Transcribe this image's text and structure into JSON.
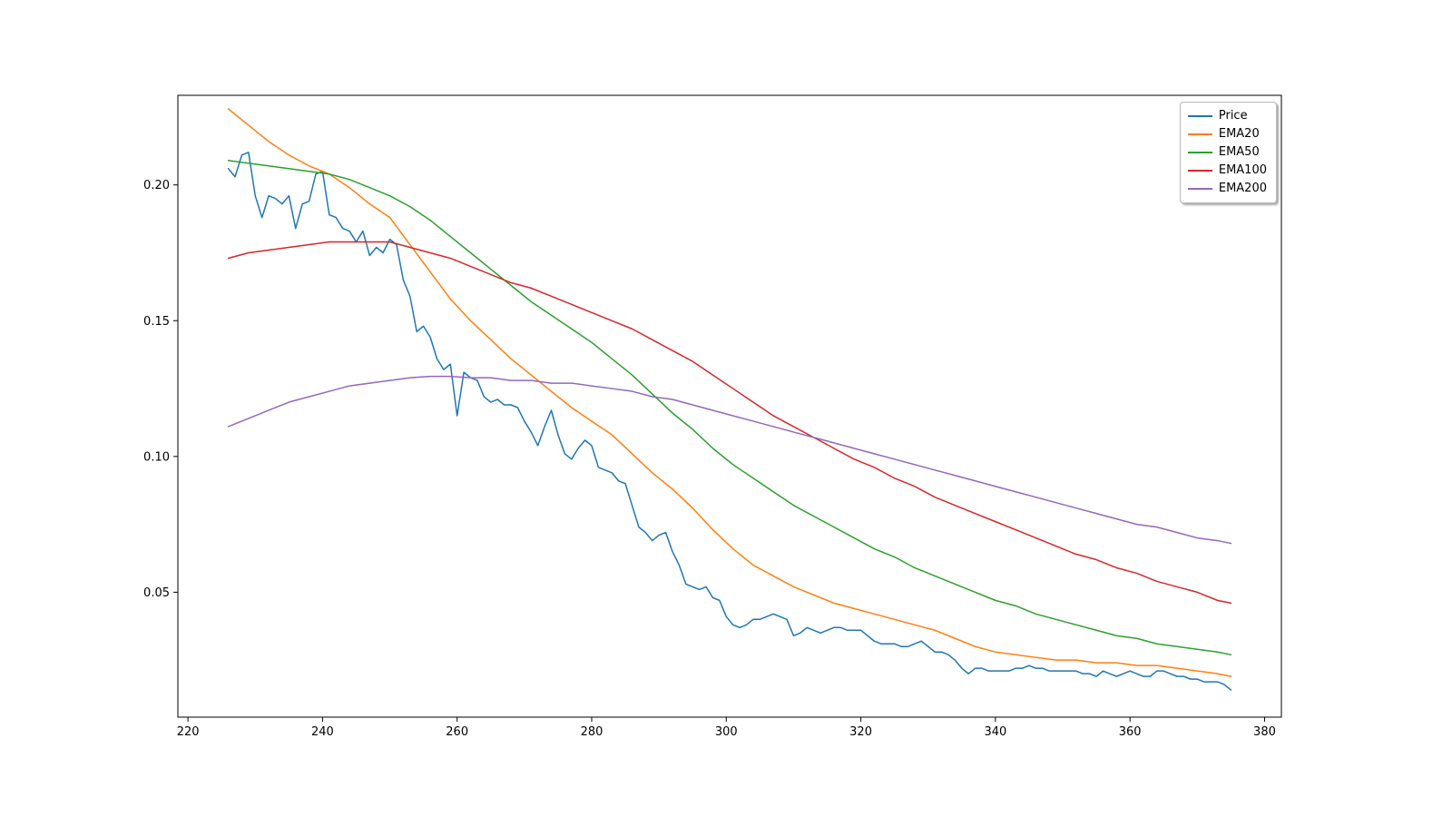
{
  "chart_data": {
    "type": "line",
    "title": "",
    "xlabel": "",
    "ylabel": "",
    "grid": false,
    "legend_position": "upper right",
    "xlim": [
      218.5,
      382.5
    ],
    "ylim": [
      0.004,
      0.233
    ],
    "x_ticks": [
      220,
      240,
      260,
      280,
      300,
      320,
      340,
      360,
      380
    ],
    "x_tick_labels": [
      "220",
      "240",
      "260",
      "280",
      "300",
      "320",
      "340",
      "360",
      "380"
    ],
    "y_ticks": [
      0.05,
      0.1,
      0.15,
      0.2
    ],
    "y_tick_labels": [
      "0.05",
      "0.10",
      "0.15",
      "0.20"
    ],
    "series": [
      {
        "name": "Price",
        "color": "#1f77b4",
        "x_start": 226,
        "x_step": 1,
        "y": [
          0.206,
          0.203,
          0.211,
          0.212,
          0.196,
          0.188,
          0.196,
          0.195,
          0.193,
          0.196,
          0.184,
          0.193,
          0.194,
          0.204,
          0.205,
          0.189,
          0.188,
          0.184,
          0.183,
          0.179,
          0.183,
          0.174,
          0.177,
          0.175,
          0.18,
          0.178,
          0.165,
          0.159,
          0.146,
          0.148,
          0.144,
          0.136,
          0.132,
          0.134,
          0.115,
          0.131,
          0.129,
          0.128,
          0.122,
          0.12,
          0.121,
          0.119,
          0.119,
          0.118,
          0.113,
          0.109,
          0.104,
          0.111,
          0.117,
          0.108,
          0.101,
          0.099,
          0.103,
          0.106,
          0.104,
          0.096,
          0.095,
          0.094,
          0.091,
          0.09,
          0.082,
          0.074,
          0.072,
          0.069,
          0.071,
          0.072,
          0.065,
          0.06,
          0.053,
          0.052,
          0.051,
          0.052,
          0.048,
          0.047,
          0.041,
          0.038,
          0.037,
          0.038,
          0.04,
          0.04,
          0.041,
          0.042,
          0.041,
          0.04,
          0.034,
          0.035,
          0.037,
          0.036,
          0.035,
          0.036,
          0.037,
          0.037,
          0.036,
          0.036,
          0.036,
          0.034,
          0.032,
          0.031,
          0.031,
          0.031,
          0.03,
          0.03,
          0.031,
          0.032,
          0.03,
          0.028,
          0.028,
          0.027,
          0.025,
          0.022,
          0.02,
          0.022,
          0.022,
          0.021,
          0.021,
          0.021,
          0.021,
          0.022,
          0.022,
          0.023,
          0.022,
          0.022,
          0.021,
          0.021,
          0.021,
          0.021,
          0.021,
          0.02,
          0.02,
          0.019,
          0.021,
          0.02,
          0.019,
          0.02,
          0.021,
          0.02,
          0.019,
          0.019,
          0.021,
          0.021,
          0.02,
          0.019,
          0.019,
          0.018,
          0.018,
          0.017,
          0.017,
          0.017,
          0.016,
          0.014
        ]
      },
      {
        "name": "EMA20",
        "color": "#ff7f0e",
        "x": [
          226,
          229,
          232,
          235,
          238,
          241,
          244,
          247,
          250,
          253,
          256,
          259,
          262,
          265,
          268,
          271,
          274,
          277,
          280,
          283,
          286,
          289,
          292,
          295,
          298,
          301,
          304,
          307,
          310,
          313,
          316,
          319,
          322,
          325,
          328,
          331,
          334,
          337,
          340,
          343,
          346,
          349,
          352,
          355,
          358,
          361,
          364,
          367,
          370,
          373,
          375
        ],
        "y": [
          0.228,
          0.222,
          0.216,
          0.211,
          0.207,
          0.204,
          0.199,
          0.193,
          0.188,
          0.178,
          0.168,
          0.158,
          0.15,
          0.143,
          0.136,
          0.13,
          0.124,
          0.118,
          0.113,
          0.108,
          0.101,
          0.094,
          0.088,
          0.081,
          0.073,
          0.066,
          0.06,
          0.056,
          0.052,
          0.049,
          0.046,
          0.044,
          0.042,
          0.04,
          0.038,
          0.036,
          0.033,
          0.03,
          0.028,
          0.027,
          0.026,
          0.025,
          0.025,
          0.024,
          0.024,
          0.023,
          0.023,
          0.022,
          0.021,
          0.02,
          0.019
        ]
      },
      {
        "name": "EMA50",
        "color": "#2ca02c",
        "x": [
          226,
          229,
          232,
          235,
          238,
          241,
          244,
          247,
          250,
          253,
          256,
          259,
          262,
          265,
          268,
          271,
          274,
          277,
          280,
          283,
          286,
          289,
          292,
          295,
          298,
          301,
          304,
          307,
          310,
          313,
          316,
          319,
          322,
          325,
          328,
          331,
          334,
          337,
          340,
          343,
          346,
          349,
          352,
          355,
          358,
          361,
          364,
          367,
          370,
          373,
          375
        ],
        "y": [
          0.209,
          0.208,
          0.207,
          0.206,
          0.205,
          0.204,
          0.202,
          0.199,
          0.196,
          0.192,
          0.187,
          0.181,
          0.175,
          0.169,
          0.163,
          0.157,
          0.152,
          0.147,
          0.142,
          0.136,
          0.13,
          0.123,
          0.116,
          0.11,
          0.103,
          0.097,
          0.092,
          0.087,
          0.082,
          0.078,
          0.074,
          0.07,
          0.066,
          0.063,
          0.059,
          0.056,
          0.053,
          0.05,
          0.047,
          0.045,
          0.042,
          0.04,
          0.038,
          0.036,
          0.034,
          0.033,
          0.031,
          0.03,
          0.029,
          0.028,
          0.027
        ]
      },
      {
        "name": "EMA100",
        "color": "#d62728",
        "x": [
          226,
          229,
          232,
          235,
          238,
          241,
          244,
          247,
          250,
          253,
          256,
          259,
          262,
          265,
          268,
          271,
          274,
          277,
          280,
          283,
          286,
          289,
          292,
          295,
          298,
          301,
          304,
          307,
          310,
          313,
          316,
          319,
          322,
          325,
          328,
          331,
          334,
          337,
          340,
          343,
          346,
          349,
          352,
          355,
          358,
          361,
          364,
          367,
          370,
          373,
          375
        ],
        "y": [
          0.173,
          0.175,
          0.176,
          0.177,
          0.178,
          0.179,
          0.179,
          0.179,
          0.179,
          0.177,
          0.175,
          0.173,
          0.17,
          0.167,
          0.164,
          0.162,
          0.159,
          0.156,
          0.153,
          0.15,
          0.147,
          0.143,
          0.139,
          0.135,
          0.13,
          0.125,
          0.12,
          0.115,
          0.111,
          0.107,
          0.103,
          0.099,
          0.096,
          0.092,
          0.089,
          0.085,
          0.082,
          0.079,
          0.076,
          0.073,
          0.07,
          0.067,
          0.064,
          0.062,
          0.059,
          0.057,
          0.054,
          0.052,
          0.05,
          0.047,
          0.046
        ]
      },
      {
        "name": "EMA200",
        "color": "#9467bd",
        "x": [
          226,
          229,
          232,
          235,
          238,
          241,
          244,
          247,
          250,
          253,
          256,
          259,
          262,
          265,
          268,
          271,
          274,
          277,
          280,
          283,
          286,
          289,
          292,
          295,
          298,
          301,
          304,
          307,
          310,
          313,
          316,
          319,
          322,
          325,
          328,
          331,
          334,
          337,
          340,
          343,
          346,
          349,
          352,
          355,
          358,
          361,
          364,
          367,
          370,
          373,
          375
        ],
        "y": [
          0.111,
          0.114,
          0.117,
          0.12,
          0.122,
          0.124,
          0.126,
          0.127,
          0.128,
          0.129,
          0.1295,
          0.1295,
          0.129,
          0.129,
          0.128,
          0.128,
          0.127,
          0.127,
          0.126,
          0.125,
          0.124,
          0.122,
          0.121,
          0.119,
          0.117,
          0.115,
          0.113,
          0.111,
          0.109,
          0.107,
          0.105,
          0.103,
          0.101,
          0.099,
          0.097,
          0.095,
          0.093,
          0.091,
          0.089,
          0.087,
          0.085,
          0.083,
          0.081,
          0.079,
          0.077,
          0.075,
          0.074,
          0.072,
          0.07,
          0.069,
          0.068
        ]
      }
    ]
  }
}
